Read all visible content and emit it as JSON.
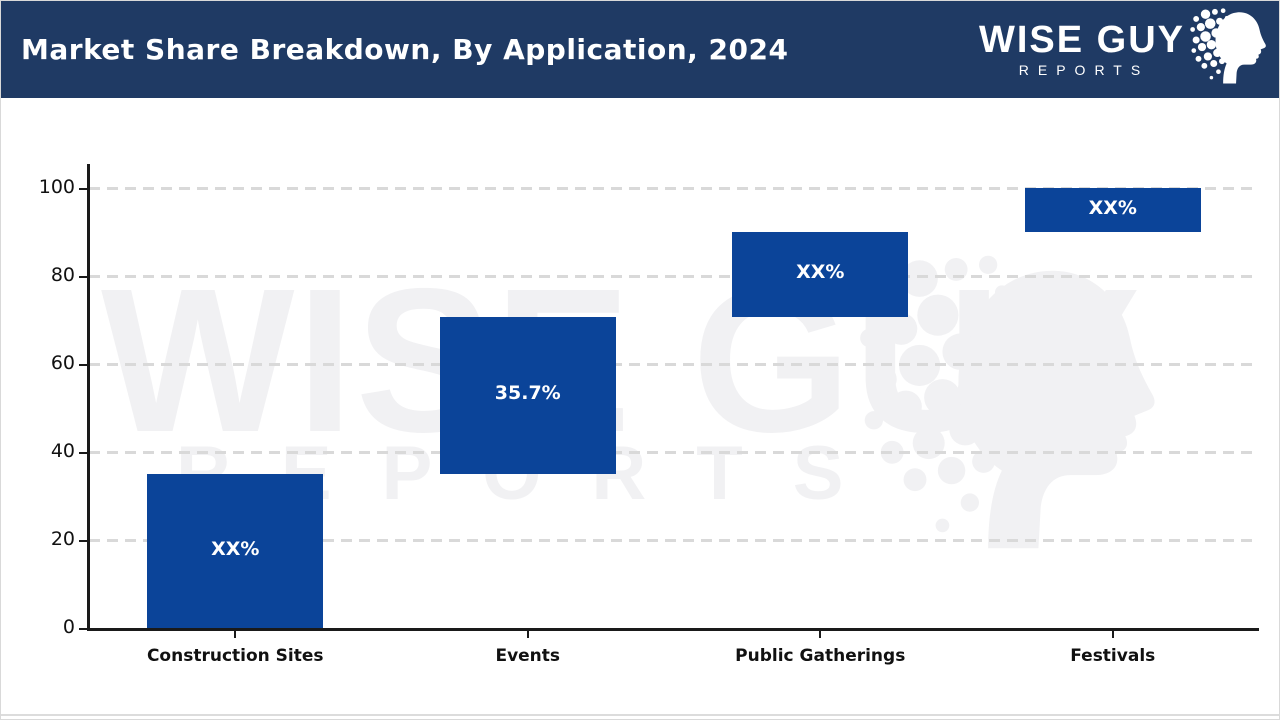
{
  "header": {
    "title": "Market Share Breakdown, By Application, 2024",
    "background_color": "#1f3a64",
    "brand": {
      "name": "WISE GUY",
      "sub": "REPORTS"
    }
  },
  "watermark": {
    "line1": "WISE GUY",
    "line2": "REPORTS"
  },
  "chart_data": {
    "type": "bar",
    "subtype": "waterfall",
    "title": "Market Share Breakdown, By Application, 2024",
    "categories": [
      "Construction Sites",
      "Events",
      "Public Gatherings",
      "Festivals"
    ],
    "segments": [
      {
        "category": "Construction Sites",
        "start": 0,
        "end": 35,
        "label": "XX%"
      },
      {
        "category": "Events",
        "start": 35,
        "end": 70.7,
        "label": "35.7%"
      },
      {
        "category": "Public Gatherings",
        "start": 70.7,
        "end": 90.1,
        "label": "XX%"
      },
      {
        "category": "Festivals",
        "start": 90.1,
        "end": 100,
        "label": "XX%"
      }
    ],
    "y_ticks": [
      0,
      20,
      40,
      60,
      80,
      100
    ],
    "ylim": [
      0,
      105
    ],
    "xlabel": "",
    "ylabel": "",
    "grid": true,
    "grid_style": "dashed",
    "legend": false,
    "bar_color": "#0b4499",
    "bar_label_color": "#ffffff",
    "axis_color": "#1a1a1a",
    "grid_color": "#d9d9d9"
  }
}
